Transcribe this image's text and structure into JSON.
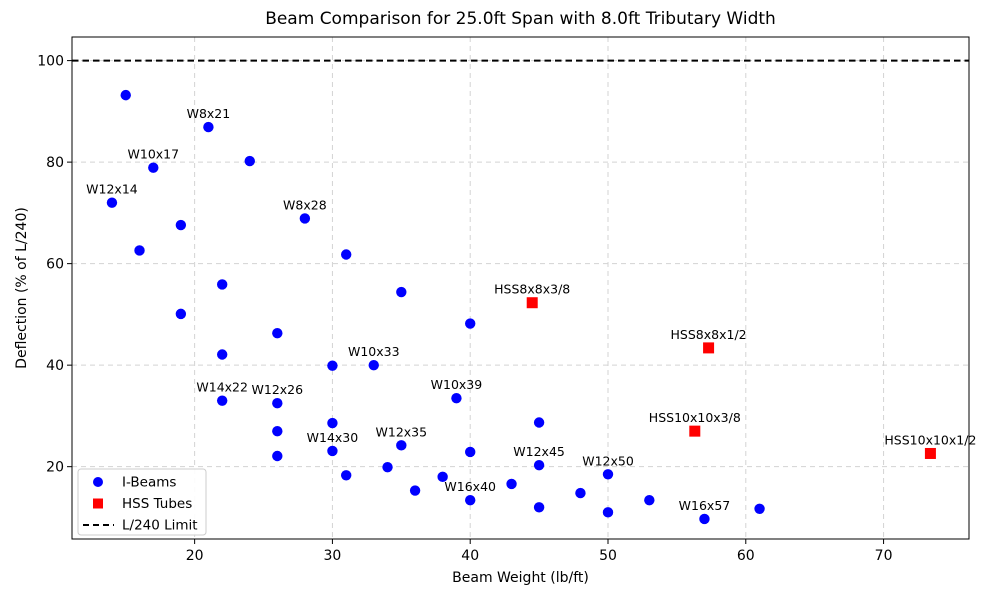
{
  "chart_data": {
    "type": "scatter",
    "title": "Beam Comparison for 25.0ft Span with 8.0ft Tributary Width",
    "xlabel": "Beam Weight (lb/ft)",
    "ylabel": "Deflection (% of L/240)",
    "xlim": [
      11.1,
      76.2
    ],
    "ylim": [
      5.75,
      104.65
    ],
    "x_ticks": [
      20,
      30,
      40,
      50,
      60,
      70
    ],
    "y_ticks": [
      20,
      40,
      60,
      80,
      100
    ],
    "grid": {
      "show": true,
      "style": "dashed",
      "color": "#d3d3d3"
    },
    "limit_line": {
      "y": 100,
      "label": "L/240 Limit",
      "color": "#000000",
      "style": "dashed"
    },
    "series": [
      {
        "name": "I-Beams",
        "marker": "circle",
        "color": "#0000ff",
        "points": [
          {
            "x": 14,
            "y": 72.0,
            "label": "W12x14"
          },
          {
            "x": 15,
            "y": 93.2,
            "label": null
          },
          {
            "x": 16,
            "y": 62.6,
            "label": null
          },
          {
            "x": 17,
            "y": 78.9,
            "label": "W10x17"
          },
          {
            "x": 19,
            "y": 67.6,
            "label": null
          },
          {
            "x": 19,
            "y": 50.1,
            "label": null
          },
          {
            "x": 21,
            "y": 86.9,
            "label": "W8x21"
          },
          {
            "x": 22,
            "y": 55.9,
            "label": null
          },
          {
            "x": 22,
            "y": 42.1,
            "label": null
          },
          {
            "x": 22,
            "y": 33.0,
            "label": "W14x22"
          },
          {
            "x": 24,
            "y": 80.2,
            "label": null
          },
          {
            "x": 26,
            "y": 46.3,
            "label": null
          },
          {
            "x": 26,
            "y": 32.5,
            "label": "W12x26"
          },
          {
            "x": 26,
            "y": 27.0,
            "label": null
          },
          {
            "x": 26,
            "y": 22.1,
            "label": null
          },
          {
            "x": 28,
            "y": 68.9,
            "label": "W8x28"
          },
          {
            "x": 30,
            "y": 39.9,
            "label": null
          },
          {
            "x": 30,
            "y": 28.6,
            "label": null
          },
          {
            "x": 30,
            "y": 23.1,
            "label": "W14x30"
          },
          {
            "x": 31,
            "y": 61.8,
            "label": null
          },
          {
            "x": 31,
            "y": 18.3,
            "label": null
          },
          {
            "x": 33,
            "y": 40.0,
            "label": "W10x33"
          },
          {
            "x": 34,
            "y": 19.9,
            "label": null
          },
          {
            "x": 35,
            "y": 54.4,
            "label": null
          },
          {
            "x": 35,
            "y": 24.2,
            "label": "W12x35"
          },
          {
            "x": 36,
            "y": 15.3,
            "label": null
          },
          {
            "x": 38,
            "y": 18.0,
            "label": null
          },
          {
            "x": 39,
            "y": 33.5,
            "label": "W10x39"
          },
          {
            "x": 40,
            "y": 48.2,
            "label": null
          },
          {
            "x": 40,
            "y": 22.9,
            "label": null
          },
          {
            "x": 40,
            "y": 13.4,
            "label": "W16x40"
          },
          {
            "x": 43,
            "y": 16.6,
            "label": null
          },
          {
            "x": 45,
            "y": 28.7,
            "label": null
          },
          {
            "x": 45,
            "y": 20.3,
            "label": "W12x45"
          },
          {
            "x": 45,
            "y": 12.0,
            "label": null
          },
          {
            "x": 48,
            "y": 14.8,
            "label": null
          },
          {
            "x": 50,
            "y": 18.5,
            "label": "W12x50"
          },
          {
            "x": 50,
            "y": 11.0,
            "label": null
          },
          {
            "x": 53,
            "y": 13.4,
            "label": null
          },
          {
            "x": 57,
            "y": 9.7,
            "label": "W16x57"
          },
          {
            "x": 61,
            "y": 11.7,
            "label": null
          }
        ]
      },
      {
        "name": "HSS Tubes",
        "marker": "square",
        "color": "#ff0000",
        "points": [
          {
            "x": 44.5,
            "y": 52.3,
            "label": "HSS8x8x3/8"
          },
          {
            "x": 57.3,
            "y": 43.4,
            "label": "HSS8x8x1/2"
          },
          {
            "x": 56.3,
            "y": 27.0,
            "label": "HSS10x10x3/8"
          },
          {
            "x": 73.4,
            "y": 22.6,
            "label": "HSS10x10x1/2"
          }
        ]
      }
    ],
    "legend": {
      "position": "lower-left",
      "items": [
        {
          "label": "I-Beams",
          "marker": "circle",
          "color": "#0000ff"
        },
        {
          "label": "HSS Tubes",
          "marker": "square",
          "color": "#ff0000"
        },
        {
          "label": "L/240 Limit",
          "marker": "dashed-line",
          "color": "#000000"
        }
      ]
    }
  }
}
